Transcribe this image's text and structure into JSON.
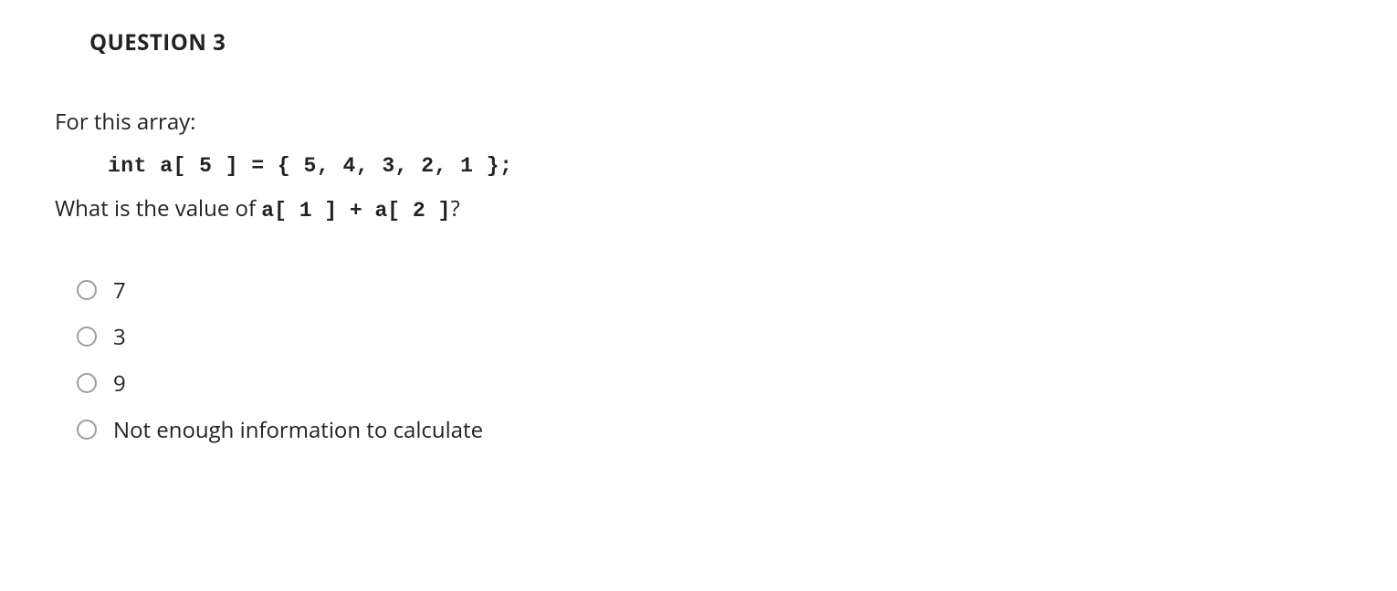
{
  "heading": "QUESTION 3",
  "intro": "For this array:",
  "code": "int a[ 5 ] = { 5, 4, 3, 2, 1 };",
  "prompt_prefix": "What is the value of ",
  "prompt_code": "a[ 1 ] + a[ 2 ]",
  "prompt_suffix": "?",
  "options": [
    {
      "label": "7"
    },
    {
      "label": "3"
    },
    {
      "label": "9"
    },
    {
      "label": "Not enough information to calculate"
    }
  ]
}
